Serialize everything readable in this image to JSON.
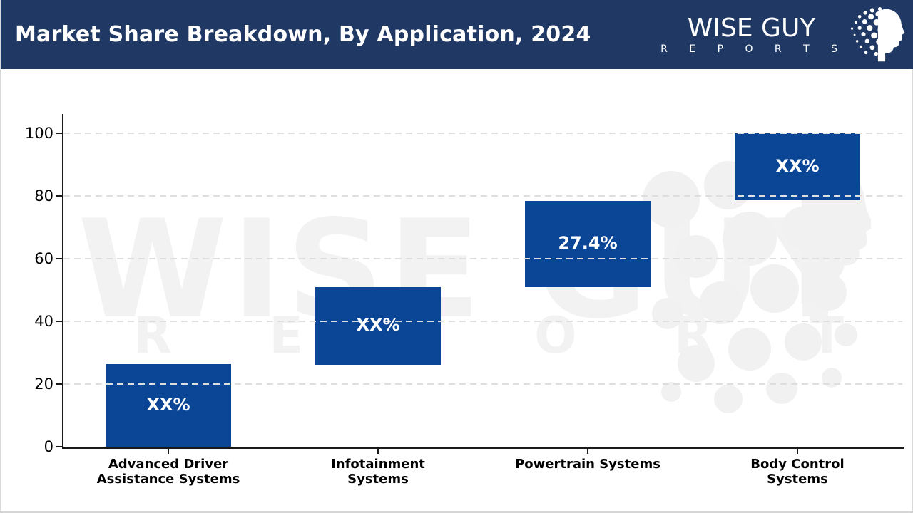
{
  "header": {
    "title": "Market Share Breakdown, By Application, 2024",
    "bg_color": "#1f3864",
    "logo": {
      "line1": "WISE GUY",
      "line2": "R E P O R T S"
    }
  },
  "watermark": {
    "line1": "WISE GUY",
    "line2": "R E P O R T S"
  },
  "chart_data": {
    "type": "bar",
    "subtype": "waterfall",
    "title": "Market Share Breakdown, By Application, 2024",
    "categories": [
      [
        "Advanced Driver",
        "Assistance Systems"
      ],
      [
        "Infotainment",
        "Systems"
      ],
      [
        "Powertrain Systems"
      ],
      [
        "Body Control",
        "Systems"
      ]
    ],
    "segments": [
      {
        "category": "Advanced Driver Assistance Systems",
        "start": 0,
        "end": 26.3,
        "label": "XX%"
      },
      {
        "category": "Infotainment Systems",
        "start": 26.2,
        "end": 51.0,
        "label": "XX%"
      },
      {
        "category": "Powertrain Systems",
        "start": 51.0,
        "end": 78.4,
        "label": "27.4%"
      },
      {
        "category": "Body Control Systems",
        "start": 78.6,
        "end": 100,
        "label": "XX%"
      }
    ],
    "ylim": [
      0,
      100
    ],
    "yticks": [
      0,
      20,
      40,
      60,
      80,
      100
    ],
    "grid": "dashed-horizontal-over-bars",
    "legend": "none",
    "bar_color": "#0b4596",
    "bar_label_color": "#ffffff"
  }
}
